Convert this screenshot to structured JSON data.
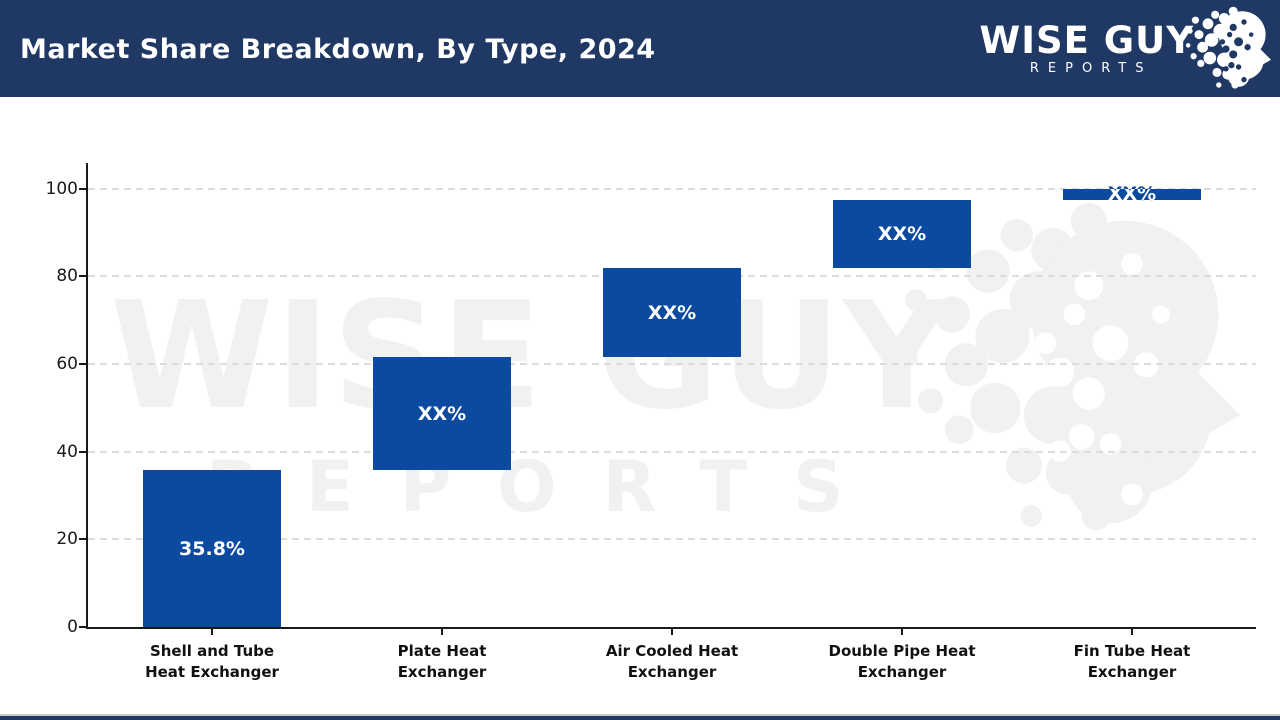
{
  "header": {
    "title": "Market Share Breakdown, By Type, 2024",
    "logo": {
      "line1": "WISE GUY",
      "line2": "REPORTS"
    }
  },
  "watermark": {
    "line1": "WISE GUY",
    "line2": "REPORTS"
  },
  "colors": {
    "header_bg": "#1F3864",
    "bar_blue": "#0B4A9E",
    "watermark_gray": "#F1F1F1",
    "grid_gray": "#DCDCDC",
    "axis_black": "#1A1A1A"
  },
  "chart_data": {
    "type": "bar",
    "subtype": "waterfall",
    "title": "Market Share Breakdown, By Type, 2024",
    "xlabel": "",
    "ylabel": "",
    "ylim": [
      0,
      105
    ],
    "yticks": [
      0,
      20,
      40,
      60,
      80,
      100
    ],
    "grid": "horizontal-dashed",
    "categories": [
      {
        "name": "Shell and Tube Heat Exchanger",
        "lines": [
          "Shell and Tube",
          "Heat Exchanger"
        ]
      },
      {
        "name": "Plate Heat Exchanger",
        "lines": [
          "Plate Heat",
          "Exchanger"
        ]
      },
      {
        "name": "Air Cooled Heat Exchanger",
        "lines": [
          "Air Cooled Heat",
          "Exchanger"
        ]
      },
      {
        "name": "Double Pipe Heat Exchanger",
        "lines": [
          "Double Pipe Heat",
          "Exchanger"
        ]
      },
      {
        "name": "Fin Tube Heat Exchanger",
        "lines": [
          "Fin Tube Heat",
          "Exchanger"
        ]
      }
    ],
    "segments": [
      {
        "start": 0,
        "end": 35.8,
        "label": "35.8%"
      },
      {
        "start": 35.8,
        "end": 61.5,
        "label": "XX%"
      },
      {
        "start": 61.5,
        "end": 81.9,
        "label": "XX%"
      },
      {
        "start": 81.9,
        "end": 97.4,
        "label": "XX%"
      },
      {
        "start": 97.4,
        "end": 100,
        "label": "XX%"
      }
    ]
  }
}
